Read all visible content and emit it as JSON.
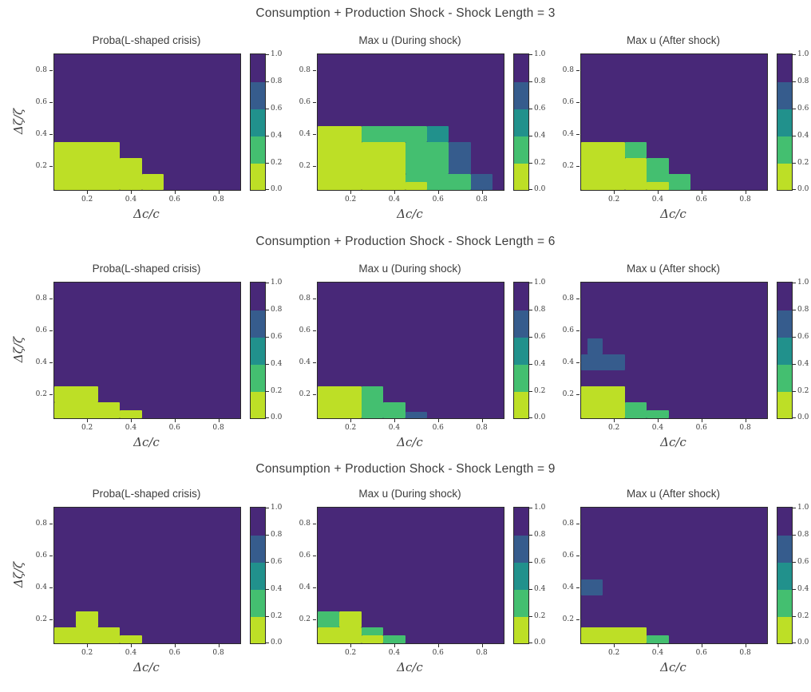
{
  "figure_title": "Consumption + Production Shock heatmap grid",
  "chart_data": {
    "type": "heatmap",
    "layout": "3 rows x 3 columns of subplots, each with its own discrete colorbar",
    "xlabel": "Δc/c",
    "ylabel": "Δζ/ζ",
    "x_extent": [
      0.05,
      0.9
    ],
    "y_extent": [
      0.05,
      0.9
    ],
    "x_ticks": [
      "0.2",
      "0.4",
      "0.6",
      "0.8"
    ],
    "y_ticks": [
      "0.2",
      "0.4",
      "0.6",
      "0.8"
    ],
    "colorbar_ticks": [
      "0.0",
      "0.2",
      "0.4",
      "0.6",
      "0.8",
      "1.0"
    ],
    "grid": "off",
    "colormap": "discrete reversed viridis, 5 bands",
    "colormap_bands": [
      {
        "name": "yellow",
        "range": [
          0.0,
          0.2
        ],
        "color": "#bddf26"
      },
      {
        "name": "green",
        "range": [
          0.2,
          0.4
        ],
        "color": "#44bf70"
      },
      {
        "name": "teal",
        "range": [
          0.4,
          0.6
        ],
        "color": "#21918c"
      },
      {
        "name": "blue",
        "range": [
          0.6,
          0.8
        ],
        "color": "#365c8d"
      },
      {
        "name": "purple",
        "range": [
          0.8,
          1.0
        ],
        "color": "#482878"
      }
    ],
    "background_band": "purple",
    "rows": [
      {
        "title": "Consumption + Production Shock - Shock Length = 3",
        "panels": [
          {
            "title": "Proba(L-shaped crisis)",
            "regions": [
              {
                "band": "yellow",
                "x0": 0.05,
                "x1": 0.35,
                "y0": 0.05,
                "y1": 0.35
              },
              {
                "band": "yellow",
                "x0": 0.35,
                "x1": 0.45,
                "y0": 0.05,
                "y1": 0.25
              },
              {
                "band": "yellow",
                "x0": 0.45,
                "x1": 0.55,
                "y0": 0.05,
                "y1": 0.15
              }
            ]
          },
          {
            "title": "Max u (During shock)",
            "regions": [
              {
                "band": "green",
                "x0": 0.25,
                "x1": 0.55,
                "y0": 0.35,
                "y1": 0.45
              },
              {
                "band": "green",
                "x0": 0.45,
                "x1": 0.65,
                "y0": 0.15,
                "y1": 0.35
              },
              {
                "band": "green",
                "x0": 0.45,
                "x1": 0.75,
                "y0": 0.05,
                "y1": 0.15
              },
              {
                "band": "yellow",
                "x0": 0.05,
                "x1": 0.25,
                "y0": 0.05,
                "y1": 0.45
              },
              {
                "band": "yellow",
                "x0": 0.25,
                "x1": 0.45,
                "y0": 0.05,
                "y1": 0.35
              },
              {
                "band": "yellow",
                "x0": 0.45,
                "x1": 0.55,
                "y0": 0.05,
                "y1": 0.1
              },
              {
                "band": "teal",
                "x0": 0.55,
                "x1": 0.65,
                "y0": 0.35,
                "y1": 0.45
              },
              {
                "band": "blue",
                "x0": 0.65,
                "x1": 0.75,
                "y0": 0.15,
                "y1": 0.35
              },
              {
                "band": "blue",
                "x0": 0.75,
                "x1": 0.85,
                "y0": 0.05,
                "y1": 0.15
              }
            ]
          },
          {
            "title": "Max u (After shock)",
            "regions": [
              {
                "band": "green",
                "x0": 0.25,
                "x1": 0.35,
                "y0": 0.25,
                "y1": 0.35
              },
              {
                "band": "green",
                "x0": 0.35,
                "x1": 0.45,
                "y0": 0.1,
                "y1": 0.25
              },
              {
                "band": "green",
                "x0": 0.35,
                "x1": 0.55,
                "y0": 0.05,
                "y1": 0.15
              },
              {
                "band": "yellow",
                "x0": 0.05,
                "x1": 0.25,
                "y0": 0.05,
                "y1": 0.35
              },
              {
                "band": "yellow",
                "x0": 0.25,
                "x1": 0.35,
                "y0": 0.05,
                "y1": 0.25
              },
              {
                "band": "yellow",
                "x0": 0.35,
                "x1": 0.45,
                "y0": 0.05,
                "y1": 0.1
              }
            ]
          }
        ]
      },
      {
        "title": "Consumption + Production Shock - Shock Length = 6",
        "panels": [
          {
            "title": "Proba(L-shaped crisis)",
            "regions": [
              {
                "band": "yellow",
                "x0": 0.05,
                "x1": 0.25,
                "y0": 0.15,
                "y1": 0.25
              },
              {
                "band": "yellow",
                "x0": 0.05,
                "x1": 0.35,
                "y0": 0.05,
                "y1": 0.15
              },
              {
                "band": "yellow",
                "x0": 0.35,
                "x1": 0.45,
                "y0": 0.05,
                "y1": 0.1
              }
            ]
          },
          {
            "title": "Max u (During shock)",
            "regions": [
              {
                "band": "green",
                "x0": 0.25,
                "x1": 0.35,
                "y0": 0.05,
                "y1": 0.25
              },
              {
                "band": "green",
                "x0": 0.35,
                "x1": 0.45,
                "y0": 0.05,
                "y1": 0.15
              },
              {
                "band": "blue",
                "x0": 0.45,
                "x1": 0.55,
                "y0": 0.05,
                "y1": 0.09
              },
              {
                "band": "yellow",
                "x0": 0.05,
                "x1": 0.25,
                "y0": 0.05,
                "y1": 0.25
              }
            ]
          },
          {
            "title": "Max u (After shock)",
            "regions": [
              {
                "band": "blue",
                "x0": 0.05,
                "x1": 0.25,
                "y0": 0.35,
                "y1": 0.45
              },
              {
                "band": "blue",
                "x0": 0.08,
                "x1": 0.15,
                "y0": 0.45,
                "y1": 0.55
              },
              {
                "band": "yellow",
                "x0": 0.05,
                "x1": 0.25,
                "y0": 0.05,
                "y1": 0.25
              },
              {
                "band": "green",
                "x0": 0.25,
                "x1": 0.35,
                "y0": 0.05,
                "y1": 0.15
              },
              {
                "band": "green",
                "x0": 0.35,
                "x1": 0.45,
                "y0": 0.05,
                "y1": 0.1
              }
            ]
          }
        ]
      },
      {
        "title": "Consumption + Production Shock - Shock Length = 9",
        "panels": [
          {
            "title": "Proba(L-shaped crisis)",
            "regions": [
              {
                "band": "yellow",
                "x0": 0.05,
                "x1": 0.35,
                "y0": 0.05,
                "y1": 0.15
              },
              {
                "band": "yellow",
                "x0": 0.15,
                "x1": 0.25,
                "y0": 0.15,
                "y1": 0.25
              },
              {
                "band": "yellow",
                "x0": 0.35,
                "x1": 0.45,
                "y0": 0.05,
                "y1": 0.1
              }
            ]
          },
          {
            "title": "Max u (During shock)",
            "regions": [
              {
                "band": "green",
                "x0": 0.05,
                "x1": 0.15,
                "y0": 0.15,
                "y1": 0.25
              },
              {
                "band": "green",
                "x0": 0.25,
                "x1": 0.35,
                "y0": 0.1,
                "y1": 0.15
              },
              {
                "band": "green",
                "x0": 0.35,
                "x1": 0.45,
                "y0": 0.05,
                "y1": 0.1
              },
              {
                "band": "yellow",
                "x0": 0.05,
                "x1": 0.25,
                "y0": 0.05,
                "y1": 0.15
              },
              {
                "band": "yellow",
                "x0": 0.15,
                "x1": 0.25,
                "y0": 0.15,
                "y1": 0.25
              },
              {
                "band": "yellow",
                "x0": 0.25,
                "x1": 0.35,
                "y0": 0.05,
                "y1": 0.1
              }
            ]
          },
          {
            "title": "Max u (After shock)",
            "regions": [
              {
                "band": "blue",
                "x0": 0.05,
                "x1": 0.15,
                "y0": 0.35,
                "y1": 0.45
              },
              {
                "band": "yellow",
                "x0": 0.05,
                "x1": 0.35,
                "y0": 0.05,
                "y1": 0.15
              },
              {
                "band": "green",
                "x0": 0.35,
                "x1": 0.45,
                "y0": 0.05,
                "y1": 0.1
              }
            ]
          }
        ]
      }
    ]
  }
}
